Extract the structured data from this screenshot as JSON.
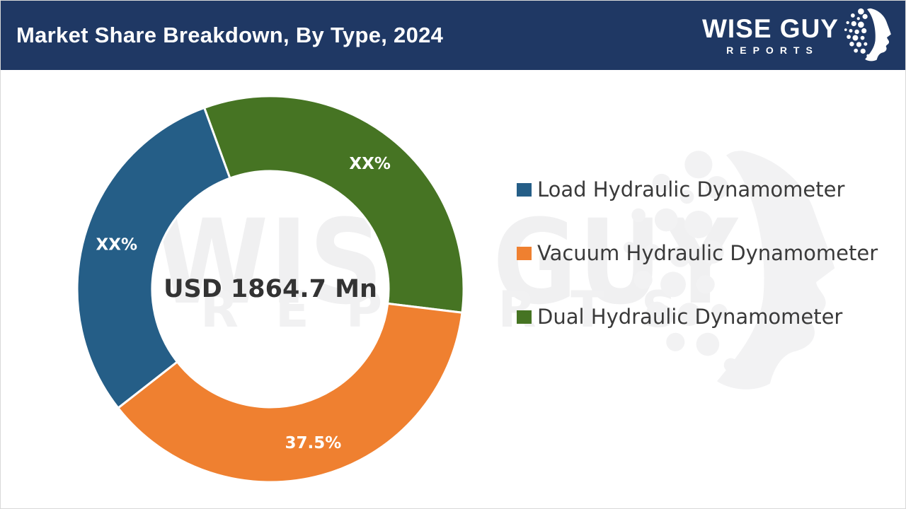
{
  "header": {
    "title": "Market Share Breakdown, By Type, 2024",
    "logo": {
      "line1": "WISE GUY",
      "line2": "REPORTS"
    }
  },
  "watermark": {
    "line1": "WISE GUY",
    "line2": "REPORTS"
  },
  "chart_data": {
    "type": "donut",
    "title": "Market Share Breakdown, By Type, 2024",
    "center_label": "USD 1864.7 Mn",
    "start_angle_deg": 110,
    "direction": "clockwise",
    "legend_position": "right",
    "segments": [
      {
        "id": "dual-hydraulic-dynamometer",
        "label": "Dual Hydraulic Dynamometer",
        "value_pct": 32.5,
        "display_label": "XX%",
        "color": "#467423"
      },
      {
        "id": "vacuum-hydraulic-dynamometer",
        "label": "Vacuum Hydraulic Dynamometer",
        "value_pct": 37.5,
        "display_label": "37.5%",
        "color": "#EF8030"
      },
      {
        "id": "load-hydraulic-dynamometer",
        "label": "Load Hydraulic Dynamometer",
        "value_pct": 30.0,
        "display_label": "XX%",
        "color": "#255E87"
      }
    ],
    "legend_order": [
      2,
      1,
      0
    ]
  },
  "colors": {
    "header_bg": "#1F3864",
    "text_dark": "#333333",
    "legend_text": "#3a3a3a",
    "watermark": "#f0f0f1",
    "slice_label": "#ffffff"
  }
}
